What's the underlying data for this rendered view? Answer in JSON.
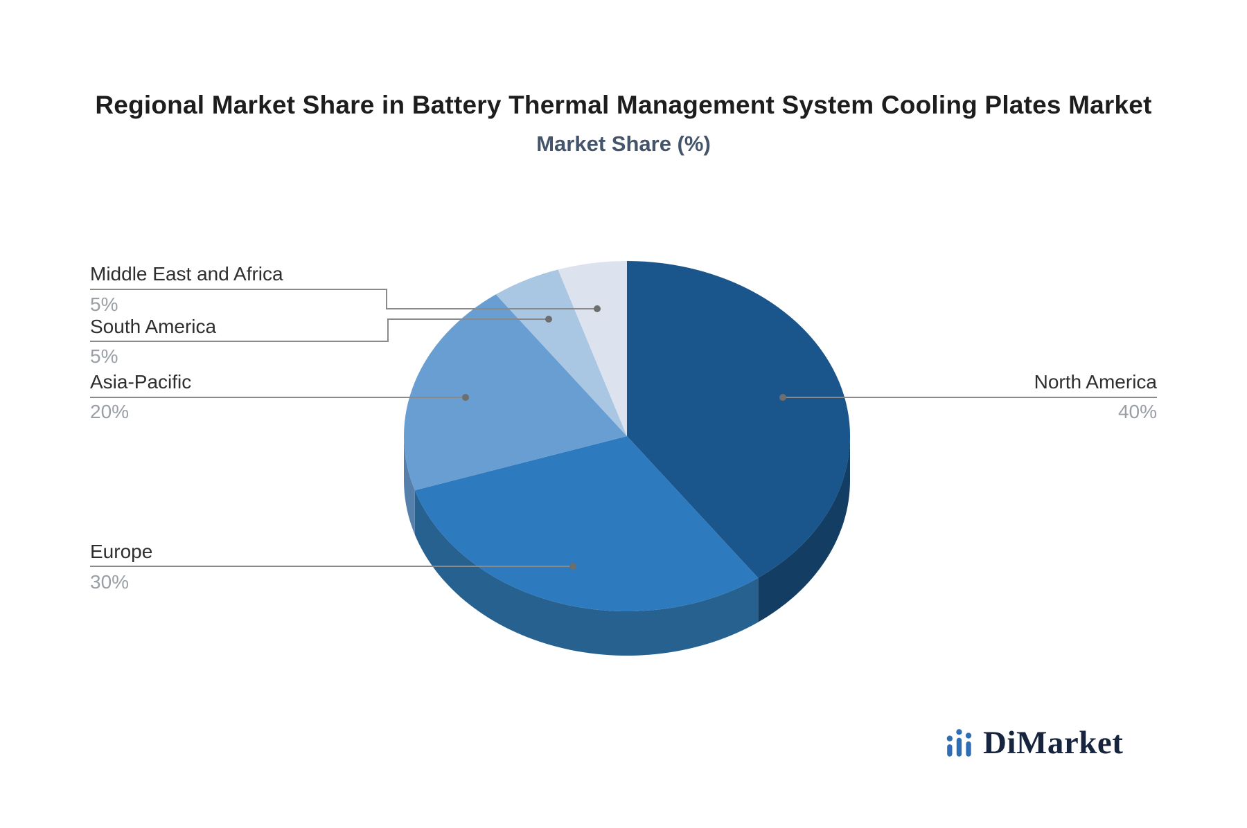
{
  "title": "Regional Market Share in Battery Thermal Management System Cooling Plates Market",
  "subtitle": "Market Share (%)",
  "logo": {
    "text": "DiMarket"
  },
  "chart_data": {
    "type": "pie",
    "title": "Regional Market Share in Battery Thermal Management System Cooling Plates Market",
    "subtitle": "Market Share (%)",
    "unit": "%",
    "start_angle_deg": 0,
    "direction": "clockwise",
    "effect": "3d",
    "legend": "none (direct leader-line labels)",
    "slices": [
      {
        "label": "North America",
        "value": 40,
        "pct_label": "40%",
        "color": "#1a568c",
        "side_color": "#133d62"
      },
      {
        "label": "Europe",
        "value": 30,
        "pct_label": "30%",
        "color": "#2e7abf",
        "side_color": "#26618f"
      },
      {
        "label": "Asia-Pacific",
        "value": 20,
        "pct_label": "20%",
        "color": "#699ed3",
        "side_color": "#5580ab"
      },
      {
        "label": "South America",
        "value": 5,
        "pct_label": "5%",
        "color": "#a9c6e3",
        "side_color": "#86a8c9"
      },
      {
        "label": "Middle East and Africa",
        "value": 5,
        "pct_label": "5%",
        "color": "#dce3ee",
        "side_color": "#b9c4d6"
      }
    ]
  }
}
